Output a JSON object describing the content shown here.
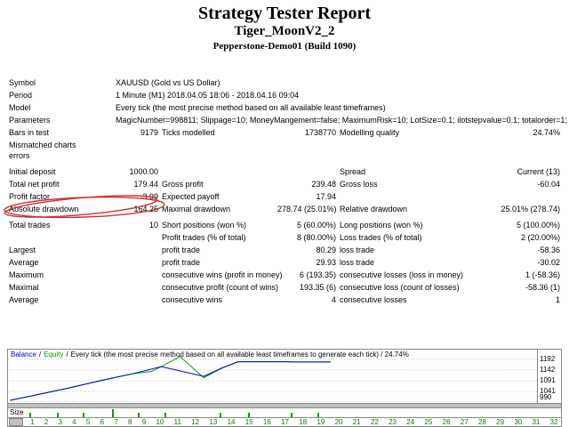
{
  "header": {
    "title": "Strategy Tester Report",
    "expert": "Tiger_MoonV2_2",
    "account": "Pepperstone-Demo01 (Build 1090)"
  },
  "table": {
    "symbol": {
      "label": "Symbol",
      "value": "XAUUSD (Gold vs US Dollar)"
    },
    "period": {
      "label": "Period",
      "value": "1 Minute (M1) 2018.04.05 18:06 - 2018.04.16 09:04"
    },
    "model": {
      "label": "Model",
      "value": "Every tick (the most precise method based on all available least timeframes)"
    },
    "parameters": {
      "label": "Parameters",
      "value": "MagicNumber=998811; Slippage=10; MoneyMangement=false; MaximumRisk=10; LotSize=0.1; ilotstepvalue=0.1; totalorder=1; ProfitTarget=20;"
    },
    "bars": {
      "label": "Bars in test",
      "value": "9179",
      "ticks_label": "Ticks modelled",
      "ticks": "1738770",
      "quality_label": "Modelling quality",
      "quality": "24.74%"
    },
    "mismatch": {
      "label": "Mismatched charts errors",
      "value": ""
    },
    "deposit": {
      "label": "Initial deposit",
      "value": "1000.00",
      "spread_label": "Spread",
      "spread": "Current (13)"
    },
    "net_profit": {
      "label": "Total net profit",
      "value": "179.44",
      "gross_profit_label": "Gross profit",
      "gross_profit": "239.48",
      "gross_loss_label": "Gross loss",
      "gross_loss": "-60.04"
    },
    "profit_factor": {
      "label": "Profit factor",
      "value": "3.99",
      "payoff_label": "Expected payoff",
      "payoff": "17.94"
    },
    "drawdown": {
      "label": "Absolute drawdown",
      "value": "164.25",
      "maximal_label": "Maximal drawdown",
      "maximal": "278.74 (25.01%)",
      "relative_label": "Relative drawdown",
      "relative": "25.01% (278.74)"
    },
    "trades": {
      "label": "Total trades",
      "value": "10",
      "short_label": "Short positions (won %)",
      "short": "5 (60.00%)",
      "long_label": "Long positions (won %)",
      "long": "5 (100.00%)"
    },
    "profit_trades": {
      "label": "Profit trades (% of total)",
      "value": "8 (80.00%)",
      "loss_label": "Loss trades (% of total)",
      "loss": "2 (20.00%)"
    },
    "largest": {
      "label": "Largest",
      "profit_label": "profit trade",
      "profit": "80.29",
      "loss_label": "loss trade",
      "loss": "-58.36"
    },
    "average_trade": {
      "label": "Average",
      "profit_label": "profit trade",
      "profit": "29.93",
      "loss_label": "loss trade",
      "loss": "-30.02"
    },
    "maximum": {
      "label": "Maximum",
      "wins_label": "consecutive wins (profit in money)",
      "wins": "6 (193.35)",
      "losses_label": "consecutive losses (loss in money)",
      "losses": "1 (-58.36)"
    },
    "maximal": {
      "label": "Maximal",
      "wins_label": "consecutive profit (count of wins)",
      "wins": "193.35 (6)",
      "losses_label": "consecutive loss (count of losses)",
      "losses": "-58.36 (1)"
    },
    "average_cons": {
      "label": "Average",
      "wins_label": "consecutive wins",
      "wins": "4",
      "losses_label": "consecutive losses",
      "losses": "1"
    }
  },
  "annotation": {
    "shape": "hand-drawn red ellipse around Profit factor 3.99",
    "color": "#cc3333"
  },
  "chart_data": {
    "type": "line",
    "legend": {
      "balance": "Balance",
      "equity": "Equity",
      "sep": "/",
      "desc": "Every tick (the most precise method based on all available least timeframes to generate each tick) / 24.74%"
    },
    "y_ticks": [
      1192,
      1142,
      1091,
      1041,
      990
    ],
    "x_ticks": [
      "1",
      "2",
      "3",
      "4",
      "5",
      "6",
      "7",
      "8",
      "9",
      "10",
      "11",
      "12",
      "13",
      "14",
      "15",
      "16",
      "17",
      "18",
      "19",
      "20",
      "21",
      "22",
      "23",
      "24",
      "25",
      "26",
      "27",
      "28",
      "29",
      "30",
      "31",
      "32"
    ],
    "ylim": [
      990,
      1213
    ],
    "initial_deposit": 1000.0,
    "final_balance": 1179.44,
    "series": [
      {
        "name": "Balance",
        "color": "#0000cc",
        "points": [
          [
            0.004,
            1000
          ],
          [
            0.055,
            1026
          ],
          [
            0.115,
            1058
          ],
          [
            0.175,
            1092
          ],
          [
            0.235,
            1124
          ],
          [
            0.29,
            1158
          ],
          [
            0.37,
            1112
          ],
          [
            0.405,
            1152
          ],
          [
            0.435,
            1181
          ],
          [
            0.525,
            1181
          ],
          [
            0.54,
            1179.44
          ],
          [
            0.61,
            1179.44
          ]
        ]
      },
      {
        "name": "Equity",
        "color": "#00a000",
        "points": [
          [
            0.004,
            1000
          ],
          [
            0.055,
            1026
          ],
          [
            0.115,
            1058
          ],
          [
            0.175,
            1092
          ],
          [
            0.235,
            1124
          ],
          [
            0.272,
            1136
          ],
          [
            0.29,
            1158
          ],
          [
            0.325,
            1205
          ],
          [
            0.37,
            1106
          ],
          [
            0.405,
            1152
          ],
          [
            0.435,
            1181
          ],
          [
            0.525,
            1181
          ],
          [
            0.54,
            1179.44
          ],
          [
            0.61,
            1179.44
          ]
        ]
      }
    ],
    "size_panel": {
      "label": "Size",
      "bars": [
        {
          "x": 0.04,
          "h": 5
        },
        {
          "x": 0.092,
          "h": 5
        },
        {
          "x": 0.142,
          "h": 5
        },
        {
          "x": 0.196,
          "h": 9
        },
        {
          "x": 0.246,
          "h": 5
        },
        {
          "x": 0.295,
          "h": 5
        },
        {
          "x": 0.4,
          "h": 5
        },
        {
          "x": 0.454,
          "h": 5
        },
        {
          "x": 0.535,
          "h": 5
        },
        {
          "x": 0.585,
          "h": 5
        }
      ]
    }
  }
}
